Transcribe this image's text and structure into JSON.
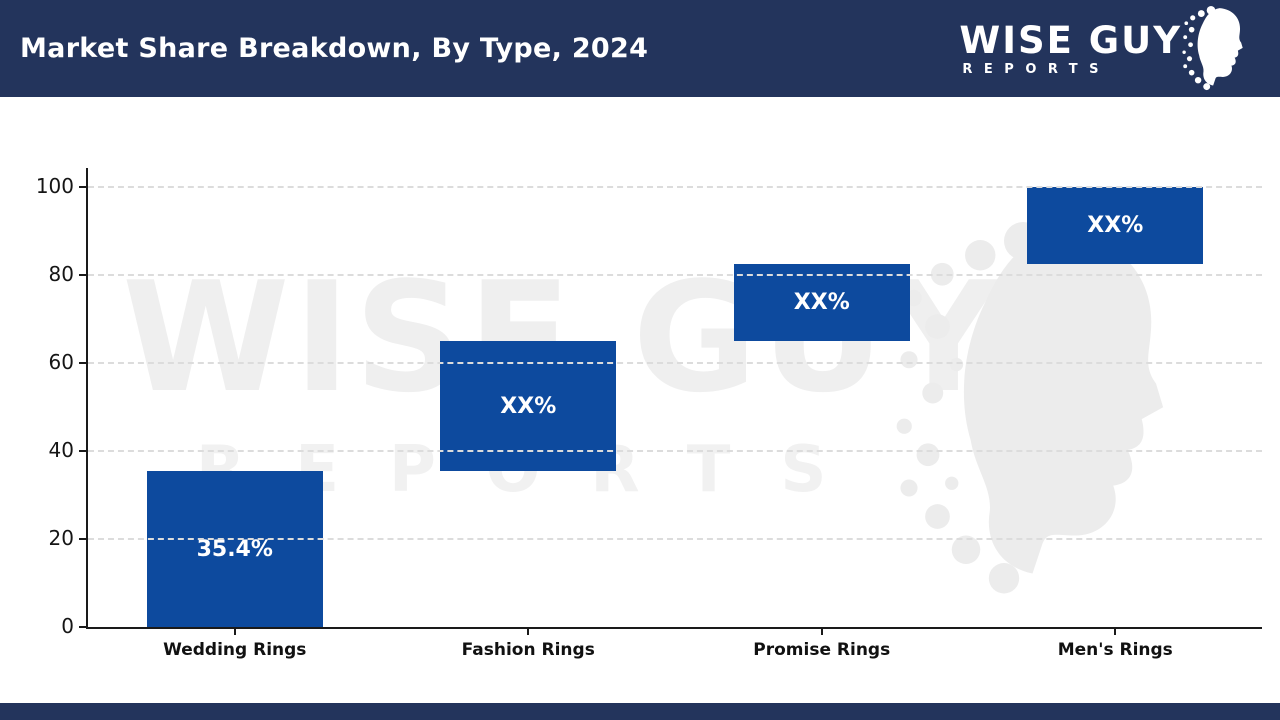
{
  "header": {
    "title": "Market Share Breakdown, By Type, 2024",
    "logo": {
      "line1": "WISE GUY",
      "line2": "REPORTS"
    }
  },
  "watermark": {
    "line1": "WISE GUY",
    "line2": "REPORTS"
  },
  "chart_data": {
    "type": "bar",
    "subtype": "waterfall-floating-bars",
    "title": "Market Share Breakdown, By Type, 2024",
    "categories": [
      "Wedding Rings",
      "Fashion Rings",
      "Promise Rings",
      "Men's Rings"
    ],
    "segments": [
      {
        "category": "Wedding Rings",
        "start": 0,
        "end": 35.4,
        "label": "35.4%"
      },
      {
        "category": "Fashion Rings",
        "start": 35.4,
        "end": 65,
        "label": "XX%"
      },
      {
        "category": "Promise Rings",
        "start": 65,
        "end": 82.5,
        "label": "XX%"
      },
      {
        "category": "Men's Rings",
        "start": 82.5,
        "end": 100,
        "label": "XX%"
      }
    ],
    "xlabel": "",
    "ylabel": "",
    "ylim": [
      0,
      100
    ],
    "yticks": [
      0,
      20,
      40,
      60,
      80,
      100
    ],
    "grid": "horizontal dashed, drawn over bars",
    "legend": "none",
    "bar_color": "#0d4a9e",
    "value_label_color": "#ffffff"
  },
  "colors": {
    "header_bg": "#23345c",
    "footer_bg": "#23345c",
    "bar": "#0d4a9e",
    "gridline": "#dcdcdc",
    "axis": "#1a1a1a",
    "watermark": "#efefef",
    "title_text": "#ffffff"
  }
}
